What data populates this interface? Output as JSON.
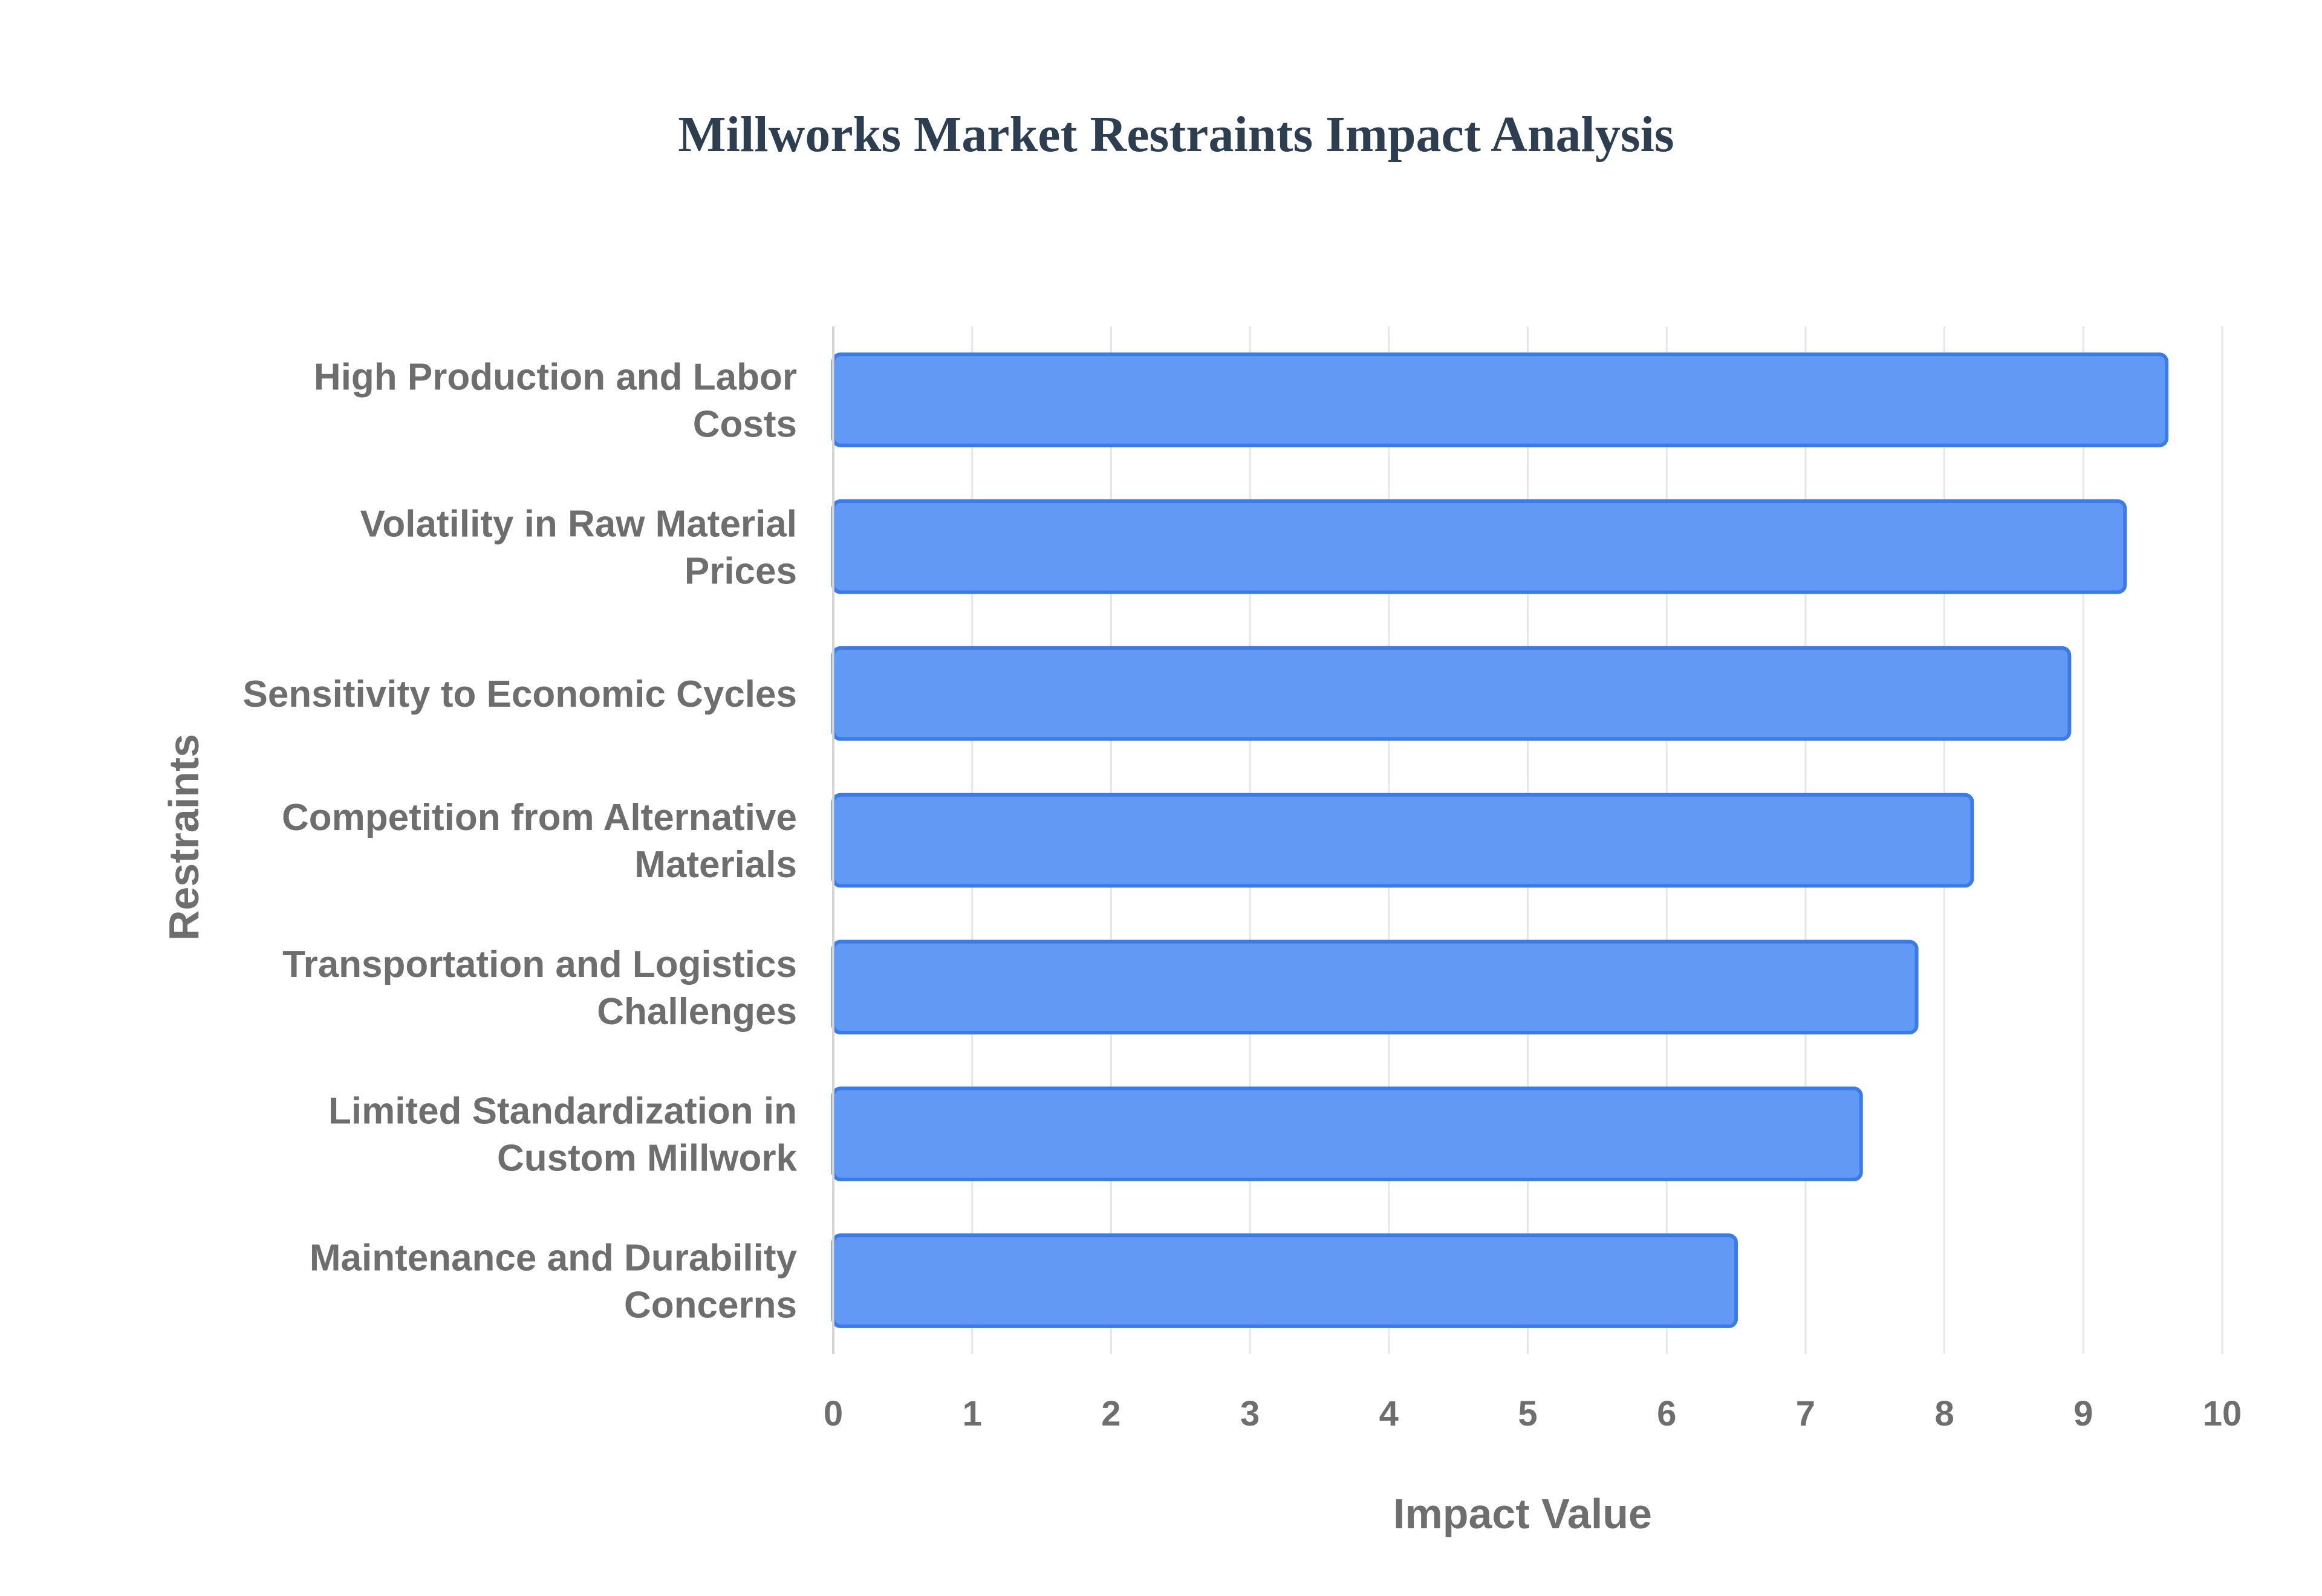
{
  "chart_data": {
    "type": "bar",
    "orientation": "horizontal",
    "title": "Millworks Market Restraints Impact Analysis",
    "xlabel": "Impact Value",
    "ylabel": "Restraints",
    "xlim": [
      0,
      10
    ],
    "xticks": [
      "0",
      "1",
      "2",
      "3",
      "4",
      "5",
      "6",
      "7",
      "8",
      "9",
      "10"
    ],
    "grid": true,
    "legend": "none",
    "bar_color": "#6199f5",
    "bar_border_color": "#3b7be8",
    "categories": [
      [
        "High Production and Labor",
        "Costs"
      ],
      [
        "Volatility in Raw Material",
        "Prices"
      ],
      [
        "Sensitivity to Economic Cycles"
      ],
      [
        "Competition from Alternative",
        "Materials"
      ],
      [
        "Transportation and Logistics",
        "Challenges"
      ],
      [
        "Limited Standardization in",
        "Custom Millwork"
      ],
      [
        "Maintenance and Durability",
        "Concerns"
      ]
    ],
    "values": [
      9.6,
      9.3,
      8.9,
      8.2,
      7.8,
      7.4,
      6.5
    ]
  }
}
